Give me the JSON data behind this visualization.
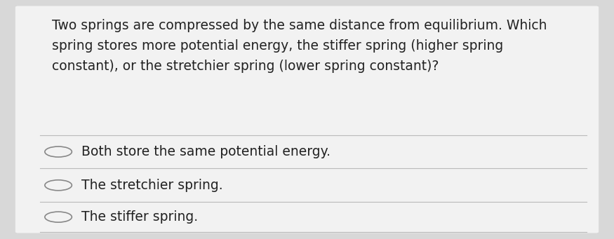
{
  "background_color": "#d8d8d8",
  "card_color": "#f2f2f2",
  "question": "Two springs are compressed by the same distance from equilibrium. Which\nspring stores more potential energy, the stiffer spring (higher spring\nconstant), or the stretchier spring (lower spring constant)?",
  "options": [
    "Both store the same potential energy.",
    "The stretchier spring.",
    "The stiffer spring."
  ],
  "divider_color": "#bbbbbb",
  "text_color": "#222222",
  "question_fontsize": 13.5,
  "option_fontsize": 13.5,
  "circle_color": "#888888"
}
